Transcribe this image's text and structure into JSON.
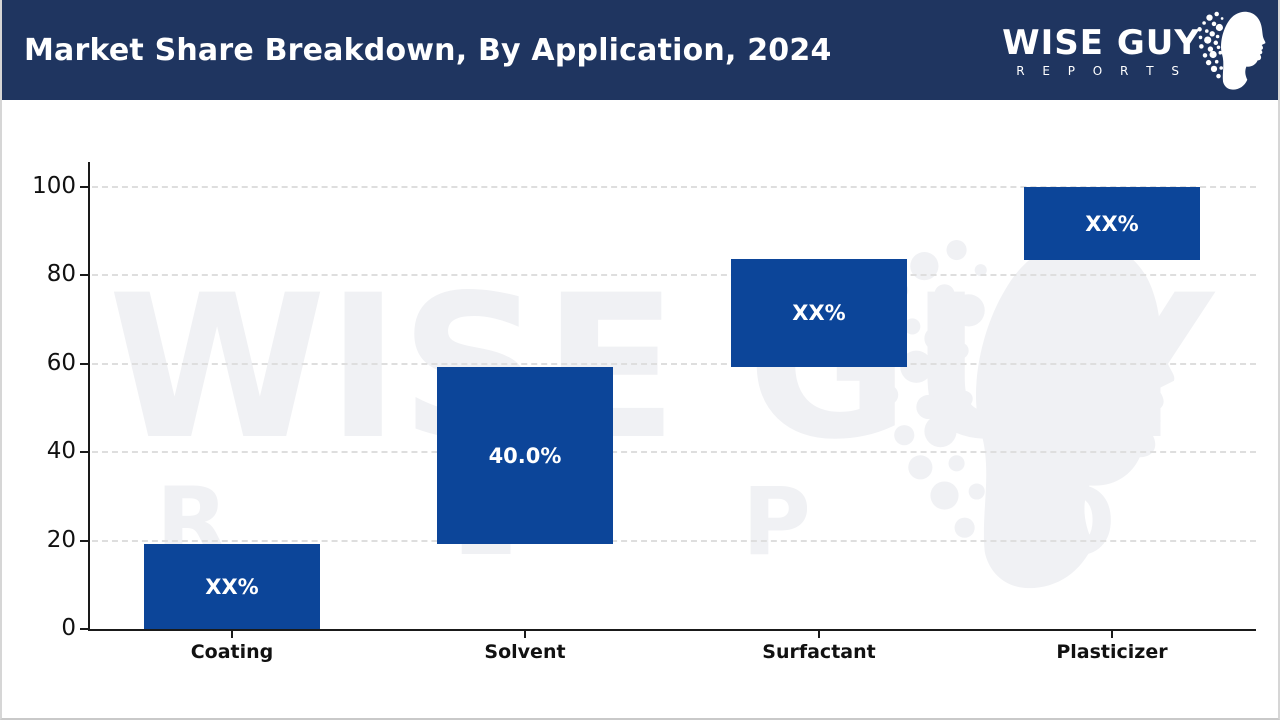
{
  "header": {
    "title": "Market Share Breakdown, By Application, 2024",
    "logo": {
      "name": "WISE GUY",
      "tagline": "R E P O R T S"
    }
  },
  "watermark": {
    "line1": "WISE GUY",
    "line2": "R E P O R T S"
  },
  "chart_data": {
    "type": "bar",
    "subtype": "floating-waterfall",
    "title": "Market Share Breakdown, By Application, 2024",
    "categories": [
      "Coating",
      "Solvent",
      "Surfactant",
      "Plasticizer"
    ],
    "segments": [
      {
        "category": "Coating",
        "start": 0,
        "end": 19.2,
        "value_label": "XX%"
      },
      {
        "category": "Solvent",
        "start": 19.2,
        "end": 59.2,
        "value_label": "40.0%"
      },
      {
        "category": "Surfactant",
        "start": 59.2,
        "end": 83.6,
        "value_label": "XX%"
      },
      {
        "category": "Plasticizer",
        "start": 83.6,
        "end": 100,
        "value_label": "XX%"
      }
    ],
    "ylim": [
      0,
      100
    ],
    "yticks": [
      0,
      20,
      40,
      60,
      80,
      100
    ],
    "xlabel": "",
    "ylabel": "",
    "grid": "horizontal-dashed",
    "colors": {
      "bar": "#0c4599",
      "bar_label": "#ffffff",
      "axis": "#1a1a1a",
      "gridline": "#dedede",
      "tick_label": "#111111",
      "header_bg": "#1f3560",
      "header_text": "#ffffff",
      "watermark": "#f0f1f4"
    }
  }
}
